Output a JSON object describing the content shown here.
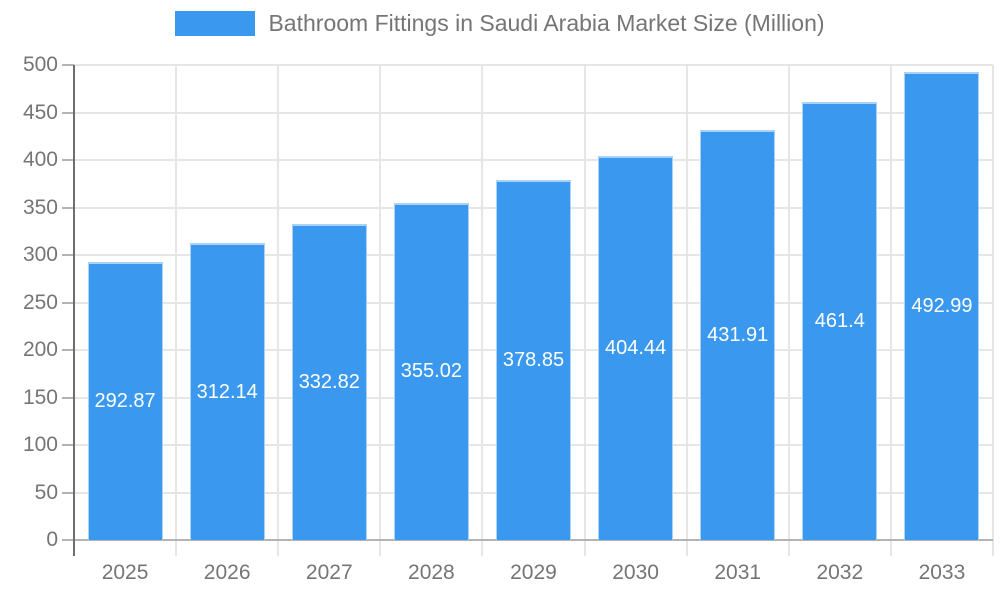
{
  "legend": {
    "label": "Bathroom Fittings in Saudi Arabia Market Size (Million)",
    "swatch_color": "#3A99EE"
  },
  "chart_data": {
    "type": "bar",
    "title": "Bathroom Fittings in Saudi Arabia Market Size (Million)",
    "categories": [
      "2025",
      "2026",
      "2027",
      "2028",
      "2029",
      "2030",
      "2031",
      "2032",
      "2033"
    ],
    "values": [
      292.87,
      312.14,
      332.82,
      355.02,
      378.85,
      404.44,
      431.91,
      461.4,
      492.99
    ],
    "value_labels": [
      "292.87",
      "312.14",
      "332.82",
      "355.02",
      "378.85",
      "404.44",
      "431.91",
      "461.4",
      "492.99"
    ],
    "xlabel": "",
    "ylabel": "",
    "ylim": [
      0,
      500
    ],
    "ytick_step": 50,
    "grid": true,
    "legend_position": "top",
    "colors": {
      "bar_fill": "#3A99EE",
      "bar_edge": "#A9D3F6",
      "value_label": "#FFFFFF",
      "axis_text": "#757575",
      "gridline": "#E6E6E6",
      "axis_line": "#6E6E6E",
      "baseline": "#B3B3B3"
    }
  }
}
